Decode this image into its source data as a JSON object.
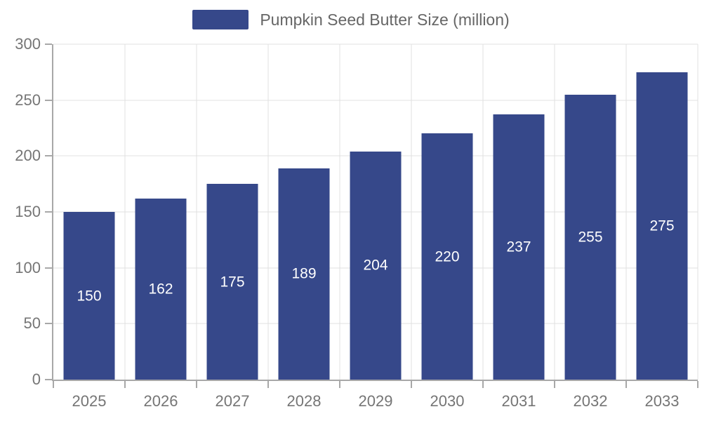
{
  "legend": {
    "label": "Pumpkin Seed Butter Size (million)"
  },
  "colors": {
    "bar": "#36488A",
    "grid": "#e0e0e0",
    "axis": "#a8a8a8",
    "tick_text": "#757575",
    "legend_text": "#666666",
    "bar_label": "#ffffff",
    "background": "#ffffff"
  },
  "chart_data": {
    "type": "bar",
    "title": "",
    "xlabel": "",
    "ylabel": "",
    "categories": [
      "2025",
      "2026",
      "2027",
      "2028",
      "2029",
      "2030",
      "2031",
      "2032",
      "2033"
    ],
    "series": [
      {
        "name": "Pumpkin Seed Butter Size (million)",
        "values": [
          150,
          162,
          175,
          189,
          204,
          220,
          237,
          255,
          275
        ]
      }
    ],
    "ylim": [
      0,
      300
    ],
    "yticks": [
      0,
      50,
      100,
      150,
      200,
      250,
      300
    ],
    "grid": true,
    "legend_position": "top",
    "bar_label_position": "inside-center"
  }
}
